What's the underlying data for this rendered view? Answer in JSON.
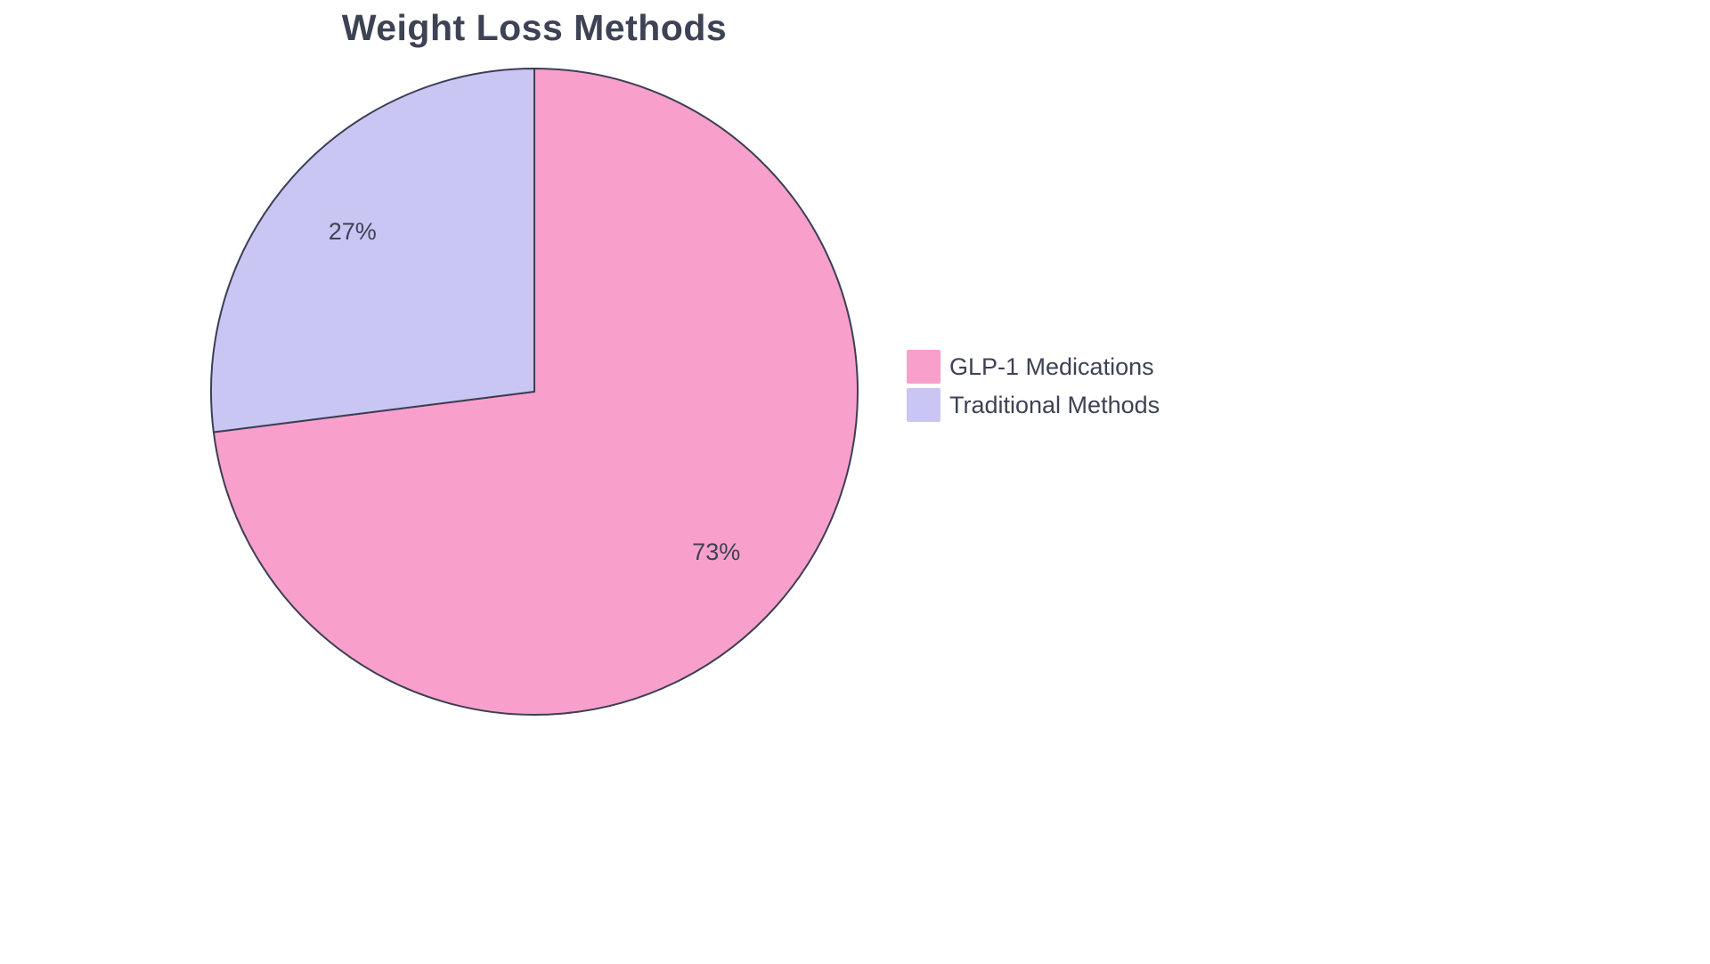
{
  "chart_data": {
    "type": "pie",
    "title": "Weight Loss Methods",
    "direction": "clockwise",
    "start_angle_deg": 0,
    "legend_position": "right",
    "stroke_color": "#3b3f54",
    "label_color": "#3d4254",
    "background_color": "#ffffff",
    "slices": [
      {
        "label": "GLP-1 Medications",
        "value": 73,
        "display": "73%",
        "color": "#f99fcb"
      },
      {
        "label": "Traditional Methods",
        "value": 27,
        "display": "27%",
        "color": "#c9c6f4"
      }
    ]
  }
}
